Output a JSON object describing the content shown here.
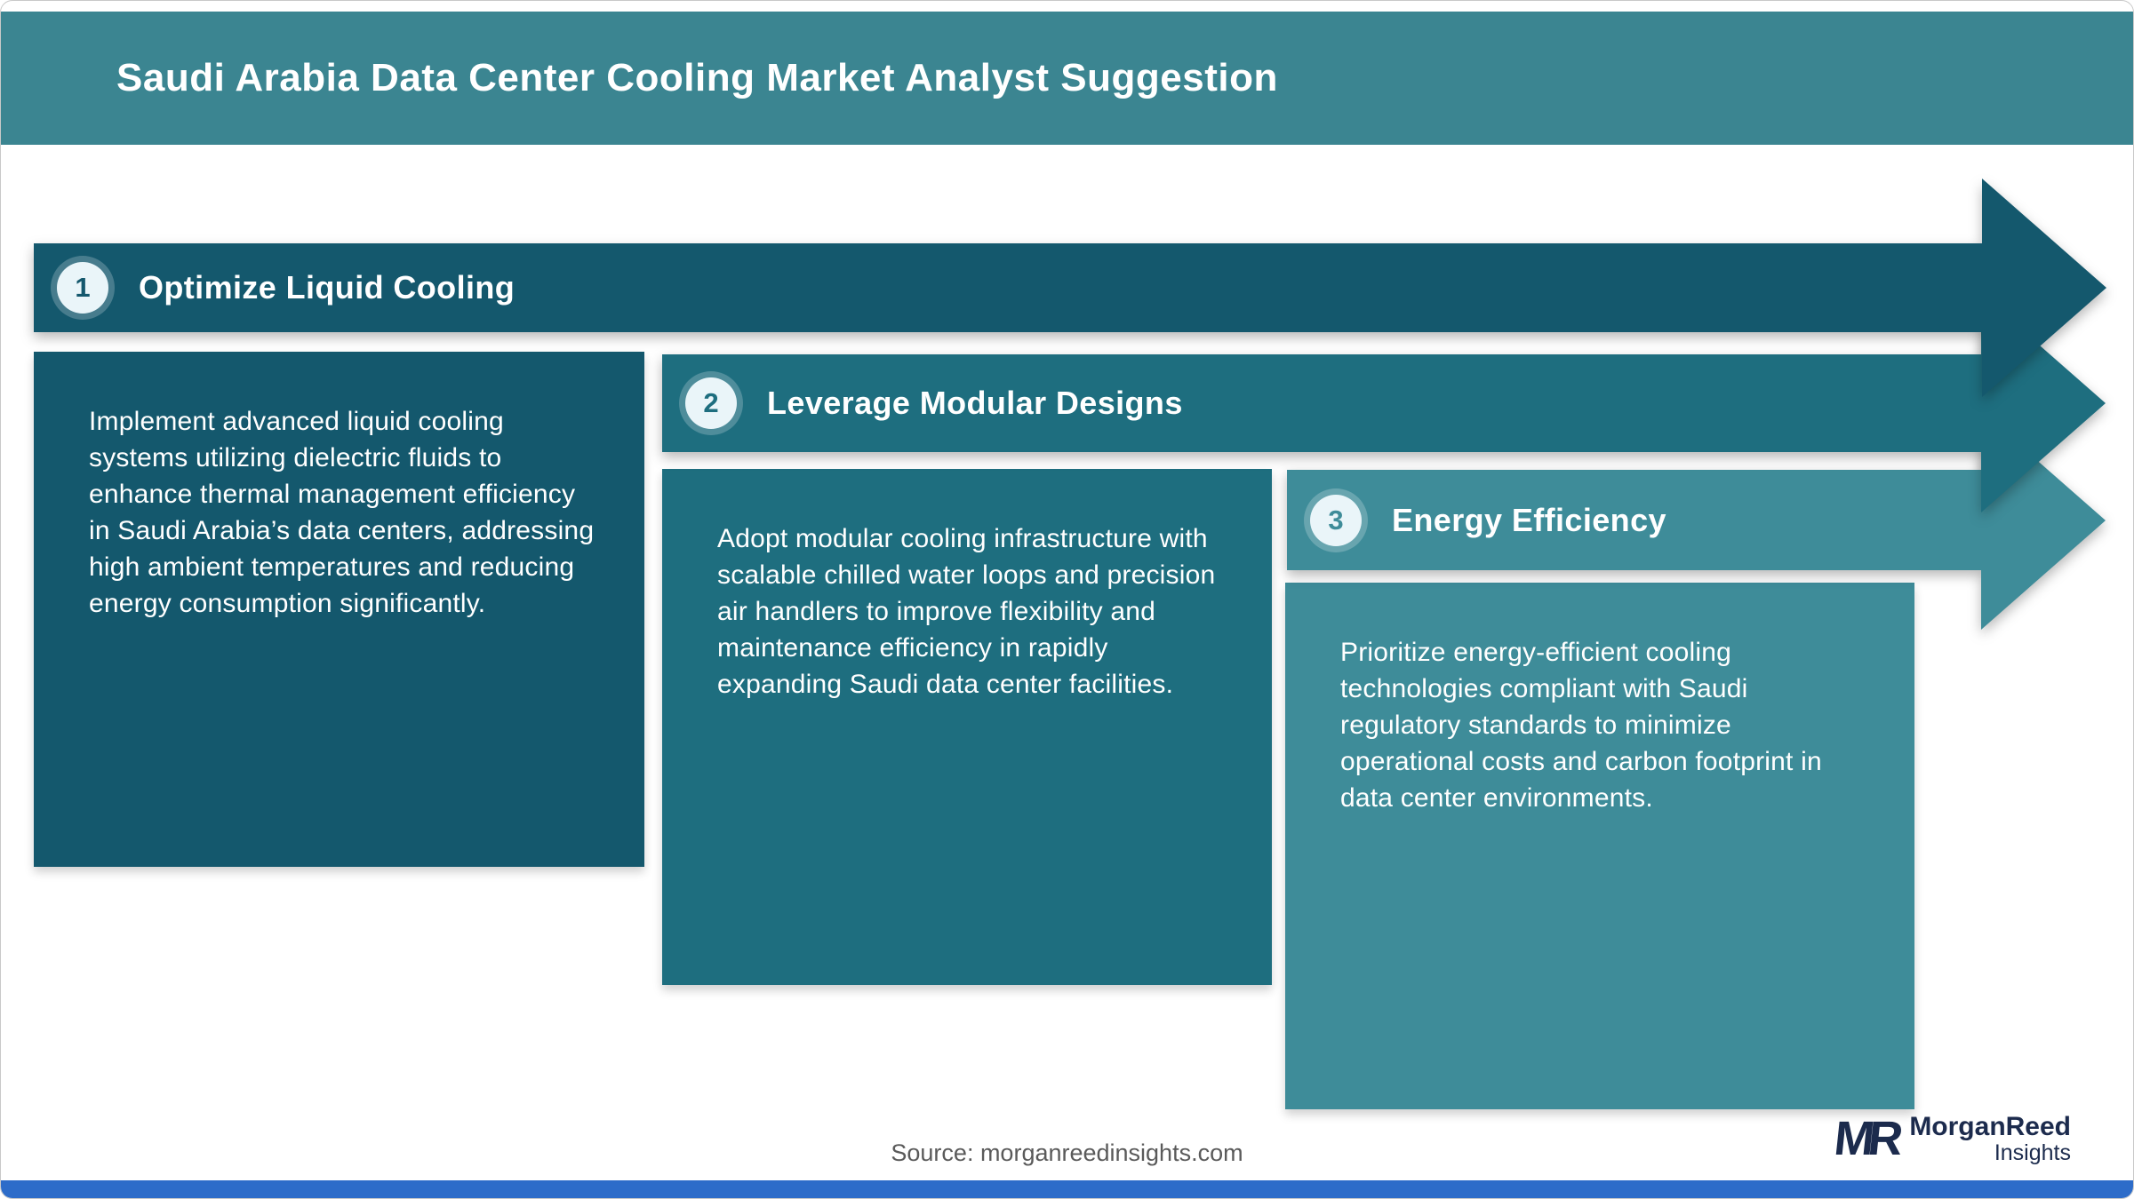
{
  "header": {
    "title": "Saudi Arabia Data Center Cooling Market Analyst Suggestion"
  },
  "steps": [
    {
      "number": "1",
      "label": "Optimize Liquid Cooling",
      "color": "#14586d",
      "body": "Implement advanced liquid cooling systems utilizing dielectric fluids to enhance thermal management efficiency in Saudi Arabia’s data centers, addressing high ambient temperatures and reducing energy consumption significantly."
    },
    {
      "number": "2",
      "label": "Leverage Modular Designs",
      "color": "#1e6e7f",
      "body": "Adopt modular cooling infrastructure with scalable chilled water loops and precision air handlers to improve flexibility and maintenance efficiency in rapidly expanding Saudi data center facilities."
    },
    {
      "number": "3",
      "label": "Energy Efficiency",
      "color": "#3e8c99",
      "body": "Prioritize energy-efficient cooling technologies compliant with Saudi regulatory standards to minimize operational costs and carbon footprint in data center environments."
    }
  ],
  "footer": {
    "source": "Source: morganreedinsights.com",
    "logo_monogram": "MR",
    "logo_name": "MorganReed",
    "logo_tagline": "Insights"
  },
  "colors": {
    "header_bg": "#3b8591",
    "step1": "#14586d",
    "step2": "#1e6e7f",
    "step3": "#3e8c99",
    "circle_bg": "#eaf5f9",
    "footer_bar": "#2d6cc9",
    "logo_navy": "#1c2b4d",
    "source_text": "#5a5a5a"
  }
}
